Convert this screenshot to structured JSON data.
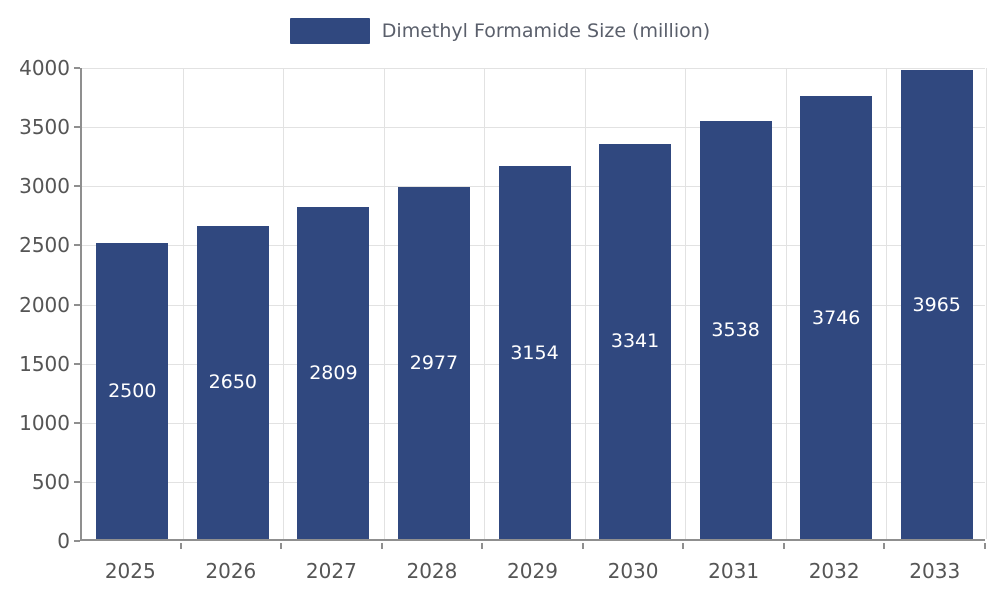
{
  "chart_data": {
    "type": "bar",
    "title": "",
    "legend": "Dimethyl Formamide Size (million)",
    "categories": [
      "2025",
      "2026",
      "2027",
      "2028",
      "2029",
      "2030",
      "2031",
      "2032",
      "2033"
    ],
    "values": [
      2500,
      2650,
      2809,
      2977,
      3154,
      3341,
      3538,
      3746,
      3965
    ],
    "xlabel": "",
    "ylabel": "",
    "ylim": [
      0,
      4000
    ],
    "yticks": [
      0,
      500,
      1000,
      1500,
      2000,
      2500,
      3000,
      3500,
      4000
    ],
    "grid": true,
    "legend_position": "top-center",
    "bar_color": "#30487f",
    "value_label_color": "#ffffff",
    "axis_color": "#8f8f8f",
    "grid_color": "#e2e2e2",
    "tick_label_color": "#555555",
    "legend_text_color": "#5a5f6b"
  }
}
